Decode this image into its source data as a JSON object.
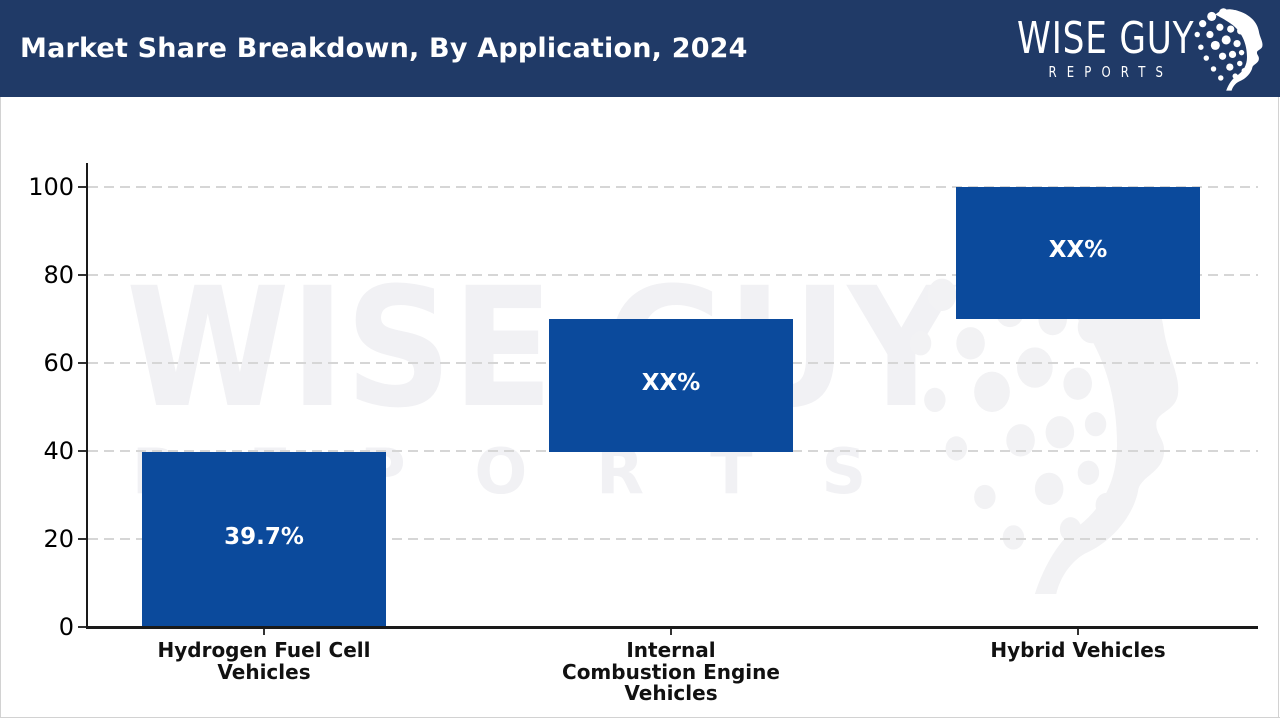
{
  "header": {
    "title": "Market Share Breakdown, By Application, 2024",
    "bg_color": "#203a67"
  },
  "logo": {
    "line1": "WISE GUY",
    "line2": "REPORTS"
  },
  "watermark": {
    "line1": "WISE GUY",
    "line2": "REPORTS"
  },
  "chart_data": {
    "type": "bar",
    "subtype": "floating-range-waterfall",
    "title": "Market Share Breakdown, By Application, 2024",
    "categories": [
      "Hydrogen Fuel Cell Vehicles",
      "Internal Combustion Engine Vehicles",
      "Hybrid Vehicles"
    ],
    "bars": [
      {
        "label_lines": [
          "Hydrogen Fuel Cell",
          "Vehicles"
        ],
        "start": 0,
        "end": 39.7,
        "value_label": "39.7%"
      },
      {
        "label_lines": [
          "Internal",
          "Combustion Engine",
          "Vehicles"
        ],
        "start": 39.7,
        "end": 70,
        "value_label": "XX%"
      },
      {
        "label_lines": [
          "Hybrid Vehicles"
        ],
        "start": 70,
        "end": 100,
        "value_label": "XX%"
      }
    ],
    "yticks": [
      0,
      20,
      40,
      60,
      80,
      100
    ],
    "ylim": [
      0,
      105
    ],
    "grid": true,
    "grid_style": "dashed",
    "bar_color": "#0b4a9c",
    "value_label_color": "#ffffff",
    "axis_color": "#1a1a1a",
    "grid_color": "#d6d6d6",
    "background": "#ffffff"
  }
}
